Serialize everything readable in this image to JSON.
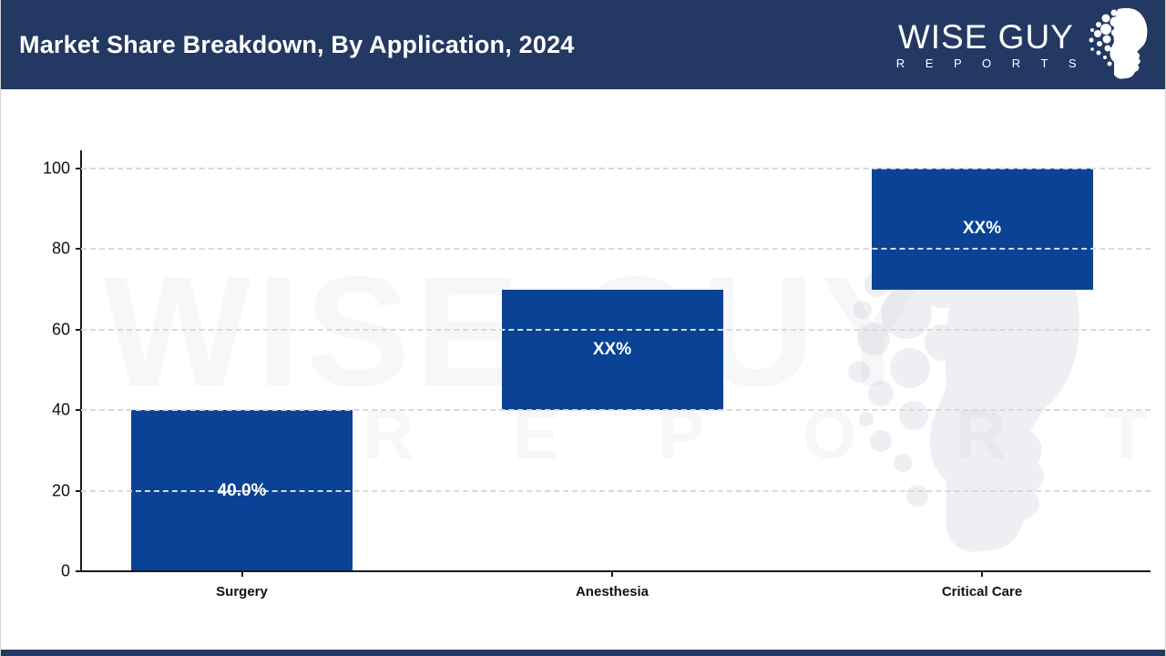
{
  "header": {
    "title": "Market Share Breakdown, By Application, 2024",
    "bg_color": "#233862",
    "logo": {
      "line1": "WISE GUY",
      "line2": "R E P O R T S",
      "face_icon": "dotted-head-profile"
    }
  },
  "watermark": {
    "line1": "WISE GUY",
    "line2": "R E P O R T S"
  },
  "footer": {
    "bg_color": "#233862"
  },
  "chart_data": {
    "type": "bar",
    "subtype": "floating-waterfall",
    "title": "Market Share Breakdown, By Application, 2024",
    "categories": [
      "Surgery",
      "Anesthesia",
      "Critical Care"
    ],
    "series": [
      {
        "name": "Market Share",
        "segments": [
          {
            "category": "Surgery",
            "from": 0,
            "to": 40,
            "label": "40.0%"
          },
          {
            "category": "Anesthesia",
            "from": 40,
            "to": 70,
            "label": "XX%"
          },
          {
            "category": "Critical Care",
            "from": 70,
            "to": 100,
            "label": "XX%"
          }
        ]
      }
    ],
    "xlabel": "",
    "ylabel": "",
    "ylim": [
      0,
      105
    ],
    "yticks": [
      0,
      20,
      40,
      60,
      80,
      100
    ],
    "grid": "horizontal-dashed",
    "grid_color": "#d9d9d9",
    "bar_color": "#0a4296",
    "bar_label_color": "#ffffff",
    "axis_color": "#1a1a1a",
    "legend": "none"
  }
}
